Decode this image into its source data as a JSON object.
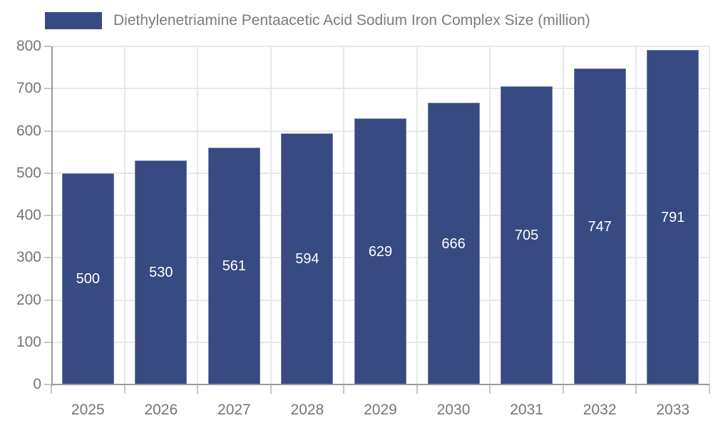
{
  "chart_data": {
    "type": "bar",
    "title": "Diethylenetriamine Pentaacetic Acid Sodium Iron Complex Size (million)",
    "legend": [
      "Diethylenetriamine Pentaacetic Acid Sodium Iron Complex Size (million)"
    ],
    "categories": [
      "2025",
      "2026",
      "2027",
      "2028",
      "2029",
      "2030",
      "2031",
      "2032",
      "2033"
    ],
    "values": [
      500,
      530,
      561,
      594,
      629,
      666,
      705,
      747,
      791
    ],
    "xlabel": "",
    "ylabel": "",
    "ylim": [
      0,
      800
    ],
    "ytick_step": 100,
    "yticks": [
      0,
      100,
      200,
      300,
      400,
      500,
      600,
      700,
      800
    ],
    "grid": true,
    "legend_position": "top-left",
    "value_label_position": "inside-middle",
    "colors": {
      "bar": "#374a81",
      "grid": "#e7e7e7",
      "axis": "#999999",
      "tick": "#c8c8c8",
      "axis_text": "#757575",
      "value_text": "#ffffff",
      "legend_text": "#7b7b7b",
      "background": "#ffffff"
    }
  }
}
